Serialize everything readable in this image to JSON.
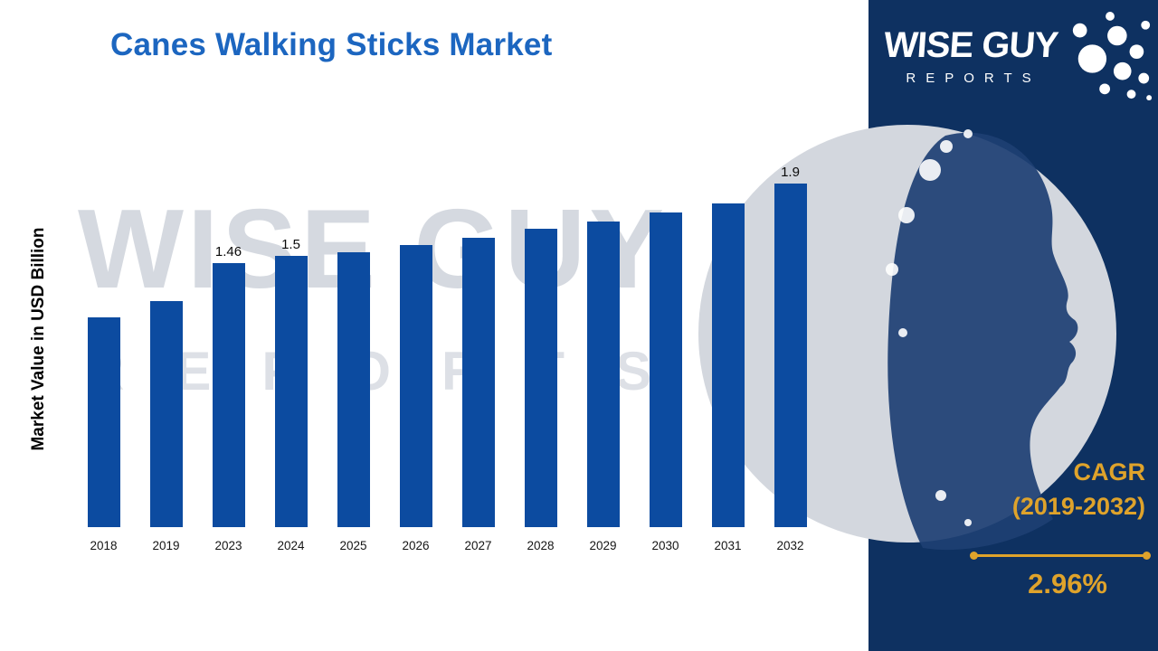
{
  "title": "Canes Walking Sticks Market",
  "y_axis_label": "Market Value in USD Billion",
  "watermark": {
    "line1": "WISE GUY",
    "line2": "REPORTS"
  },
  "logo": {
    "line1": "WISE GUY",
    "line2": "REPORTS"
  },
  "cagr": {
    "label": "CAGR",
    "period": "(2019-2032)",
    "value": "2.96%"
  },
  "colors": {
    "bar": "#0c4ba0",
    "title": "#1c66c0",
    "panel": "#0e3161",
    "gold": "#dfa32b",
    "watermark": "#c7cdd6"
  },
  "chart_data": {
    "type": "bar",
    "title": "Canes Walking Sticks Market",
    "xlabel": "",
    "ylabel": "Market Value in USD Billion",
    "categories": [
      "2018",
      "2019",
      "2023",
      "2024",
      "2025",
      "2026",
      "2027",
      "2028",
      "2029",
      "2030",
      "2031",
      "2032"
    ],
    "values": [
      1.16,
      1.25,
      1.46,
      1.5,
      1.52,
      1.56,
      1.6,
      1.65,
      1.69,
      1.74,
      1.79,
      1.9
    ],
    "data_labels": [
      "",
      "",
      "1.46",
      "1.5",
      "",
      "",
      "",
      "",
      "",
      "",
      "",
      "1.9"
    ],
    "ylim": [
      0,
      2
    ],
    "grid": false,
    "legend": "none"
  }
}
